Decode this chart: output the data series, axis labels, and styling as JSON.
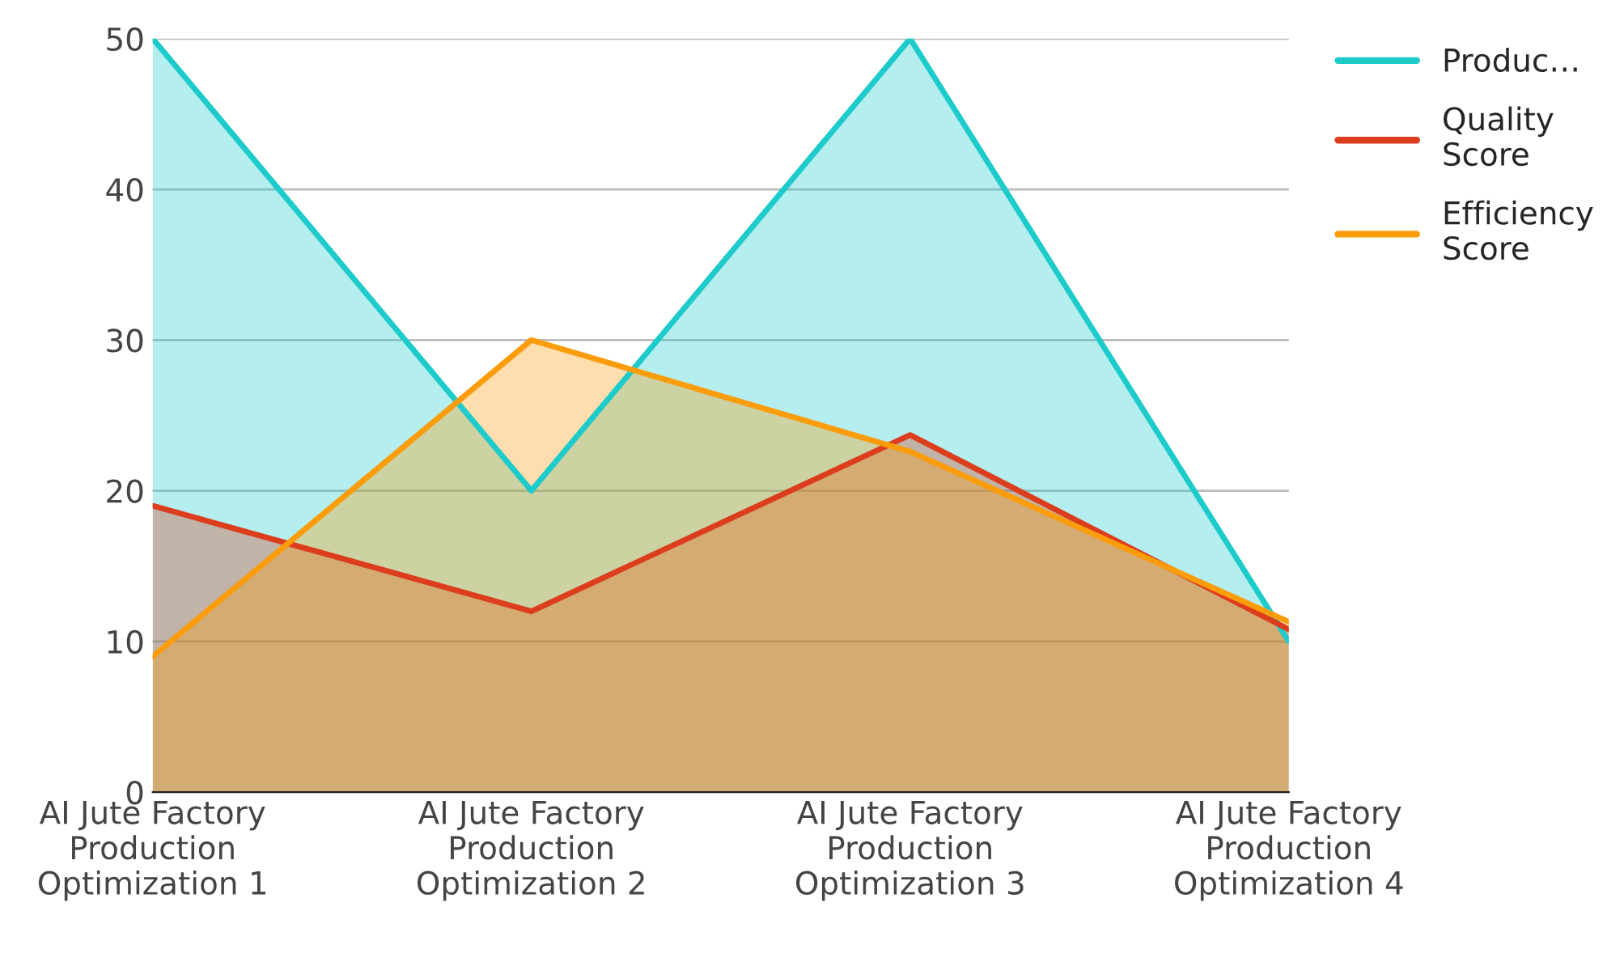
{
  "chart_data": {
    "type": "area",
    "categories": [
      "AI Jute Factory\nProduction\nOptimization 1",
      "AI Jute Factory\nProduction\nOptimization 2",
      "AI Jute Factory\nProduction\nOptimization 3",
      "AI Jute Factory\nProduction\nOptimization 4"
    ],
    "series": [
      {
        "name": "Produc…",
        "color": "#1ecbcb",
        "values": [
          50,
          20,
          50,
          10
        ]
      },
      {
        "name": "Quality\nScore",
        "color": "#dc3d1c",
        "values": [
          19,
          12,
          23.7,
          10.8
        ]
      },
      {
        "name": "Efficiency\nScore",
        "color": "#fb9c0a",
        "values": [
          9,
          30,
          22.6,
          11.3
        ]
      }
    ],
    "ylim": [
      0,
      50
    ],
    "yticks": [
      0,
      10,
      20,
      30,
      40,
      50
    ],
    "grid": "y",
    "legend": "top right"
  }
}
